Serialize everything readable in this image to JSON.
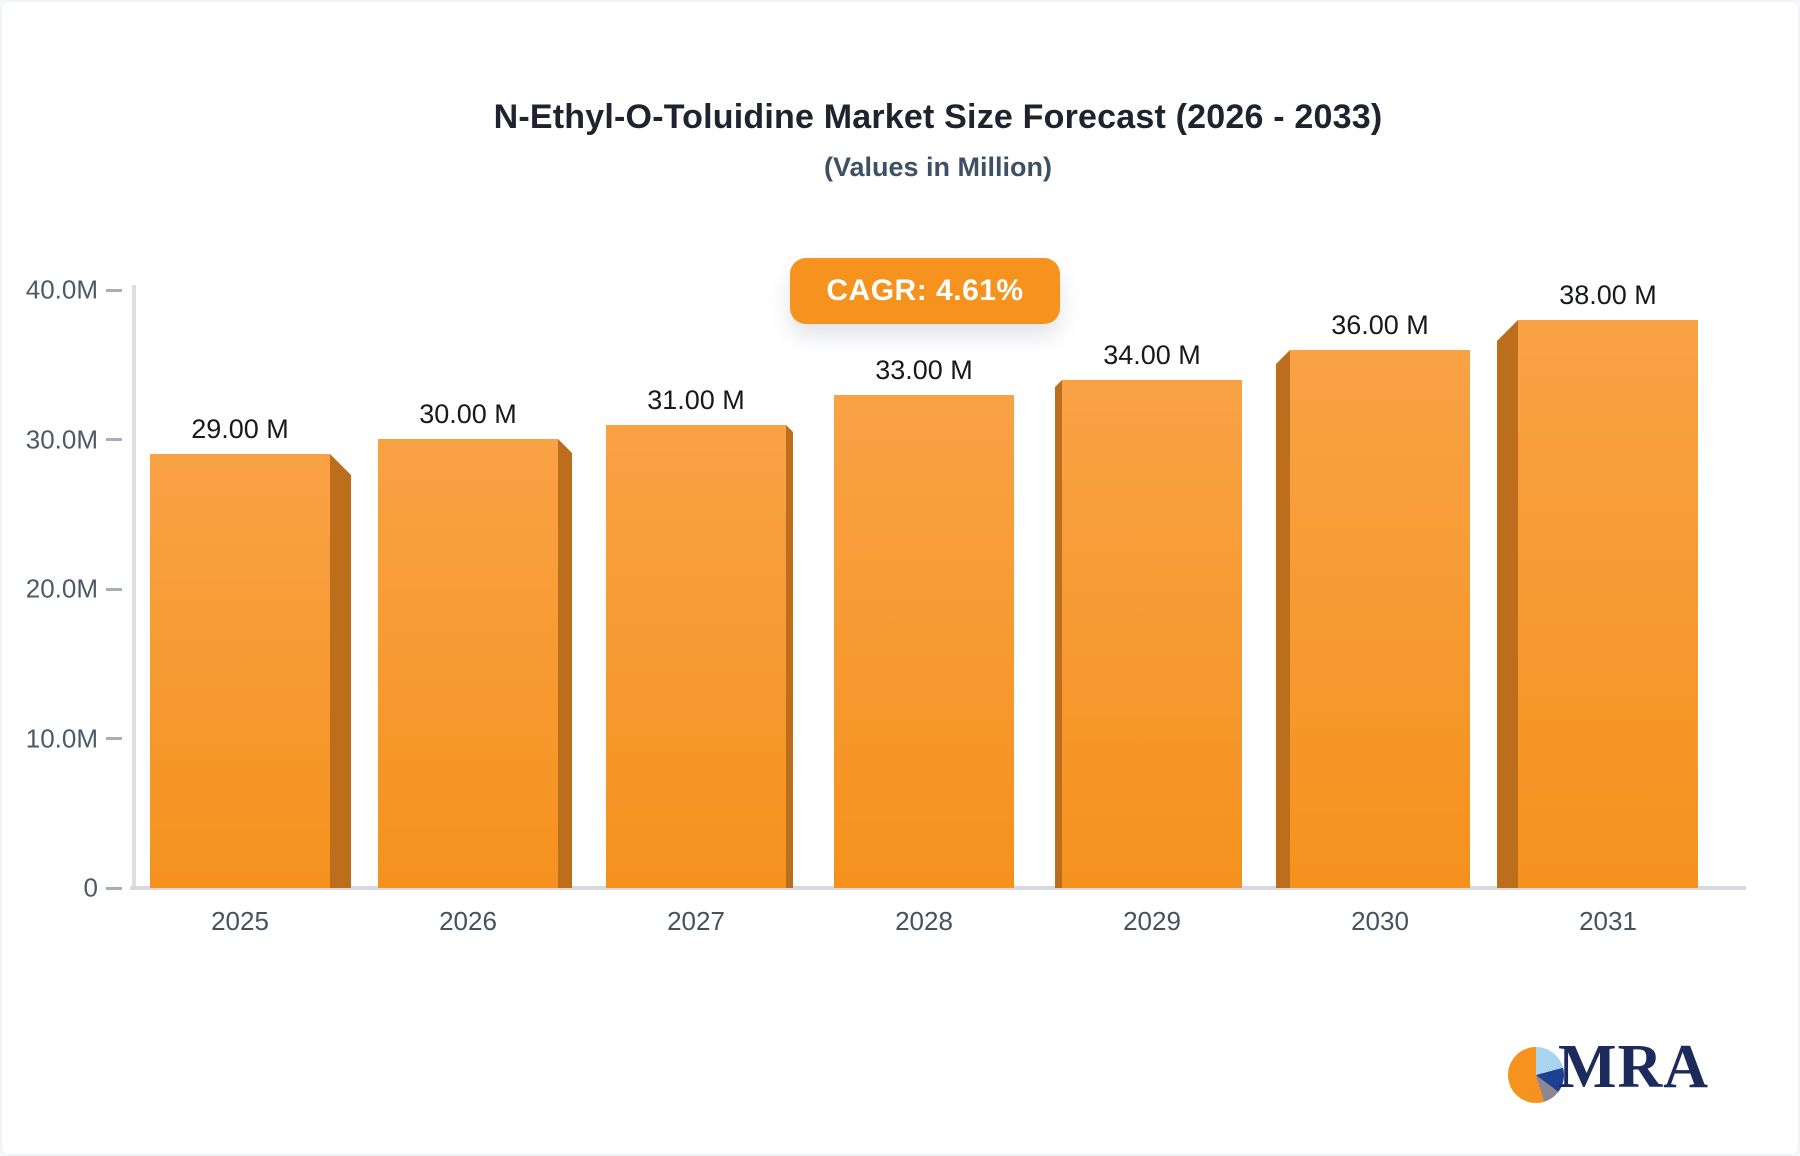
{
  "title": "N-Ethyl-O-Toluidine Market Size Forecast (2026 - 2033)",
  "subtitle": "(Values in Million)",
  "badge": {
    "label": "CAGR: 4.61%",
    "color": "#f6921e",
    "text_color": "#ffffff"
  },
  "logo": {
    "text": "MRA",
    "icon": "pie-chart-icon"
  },
  "chart_data": {
    "type": "bar",
    "title": "N-Ethyl-O-Toluidine Market Size Forecast (2026 - 2033)",
    "subtitle": "(Values in Million)",
    "categories": [
      "2025",
      "2026",
      "2027",
      "2028",
      "2029",
      "2030",
      "2031"
    ],
    "values": [
      29,
      30,
      31,
      33,
      34,
      36,
      38
    ],
    "bar_labels": [
      "29.00 M",
      "30.00 M",
      "31.00 M",
      "33.00 M",
      "34.00 M",
      "36.00 M",
      "38.00 M"
    ],
    "xlabel": "",
    "ylabel": "",
    "ylim": [
      0,
      40
    ],
    "grid": false,
    "legend": "none",
    "y_ticks": [
      {
        "label": "40.0M",
        "value": 40
      },
      {
        "label": "30.0M",
        "value": 30
      },
      {
        "label": "20.0M",
        "value": 20
      },
      {
        "label": "10.0M",
        "value": 10
      },
      {
        "label": "0",
        "value": 0
      }
    ],
    "colors": {
      "bar_face_top": "#f9a245",
      "bar_face_bottom": "#f5921e",
      "bar_side": "#bd6e1d",
      "axis_line": "#dddee1",
      "tick": "#a6aeb6",
      "tick_label": "#4c5a66",
      "value_label": "#17191c"
    }
  }
}
